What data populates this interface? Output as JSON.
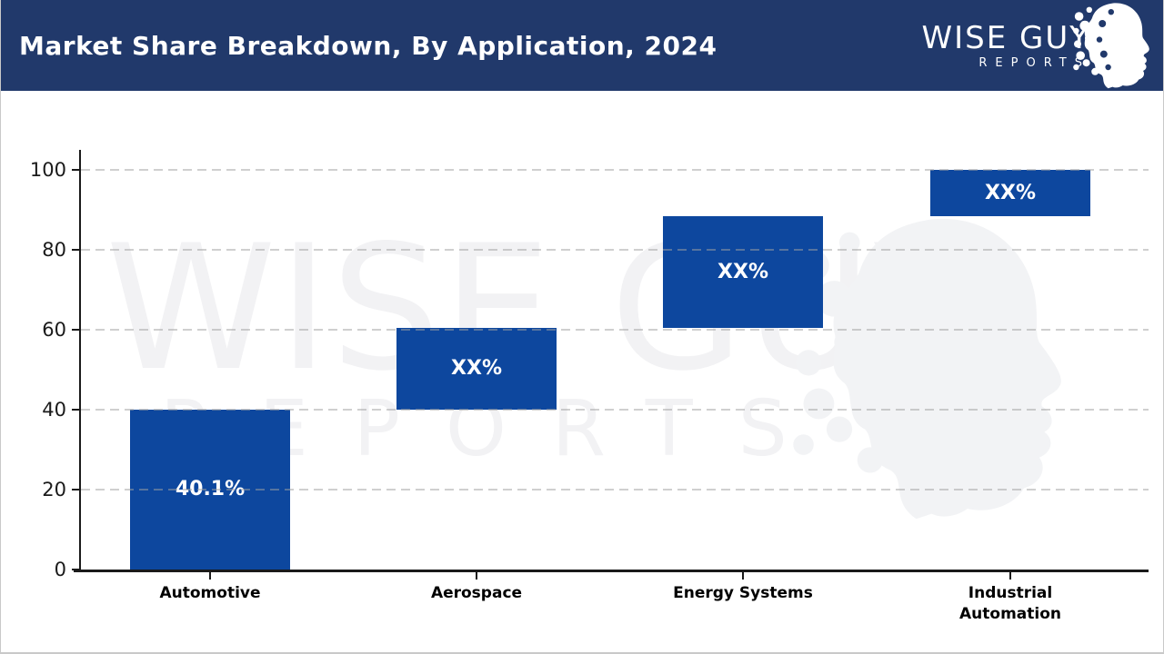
{
  "header": {
    "title": "Market Share Breakdown, By Application, 2024",
    "logo": {
      "wordmark": "WISE GUY",
      "subtext": "REPORTS"
    }
  },
  "watermark": {
    "line1": "WISE GUY",
    "line2": "REPORTS"
  },
  "colors": {
    "header_bg": "#21396b",
    "bar_fill": "#0d479e",
    "grid": "#cfcfcf",
    "axis": "#1a1a1a",
    "bar_label_text": "#ffffff",
    "watermark": "#f2f2f4"
  },
  "chart_data": {
    "type": "bar",
    "subtype": "waterfall-segments",
    "title": "Market Share Breakdown, By Application, 2024",
    "categories": [
      "Automotive",
      "Aerospace",
      "Energy Systems",
      "Industrial Automation"
    ],
    "segments": [
      {
        "category": "Automotive",
        "start": 0,
        "end": 40.1,
        "label": "40.1%"
      },
      {
        "category": "Aerospace",
        "start": 40.1,
        "end": 60.4,
        "label": "XX%"
      },
      {
        "category": "Energy Systems",
        "start": 60.4,
        "end": 88.4,
        "label": "XX%"
      },
      {
        "category": "Industrial Automation",
        "start": 88.4,
        "end": 100,
        "label": "XX%"
      }
    ],
    "yticks": [
      0,
      20,
      40,
      60,
      80,
      100
    ],
    "ylim": [
      0,
      105
    ],
    "xlabel": "",
    "ylabel": "",
    "grid": {
      "axis": "y",
      "style": "dashed",
      "drawn_over_bars": true
    },
    "legend": null
  }
}
